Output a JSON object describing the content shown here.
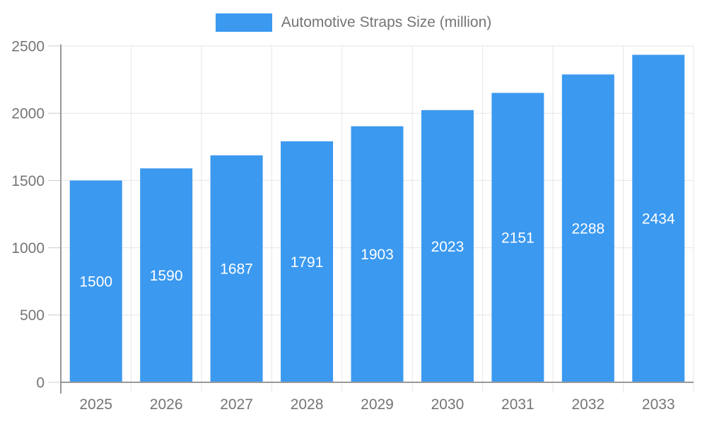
{
  "legend": {
    "label": "Automotive Straps Size (million)"
  },
  "chart_data": {
    "type": "bar",
    "title": "Automotive Straps Size (million)",
    "categories": [
      "2025",
      "2026",
      "2027",
      "2028",
      "2029",
      "2030",
      "2031",
      "2032",
      "2033"
    ],
    "values": [
      1500,
      1590,
      1687,
      1791,
      1903,
      2023,
      2151,
      2288,
      2434
    ],
    "xlabel": "",
    "ylabel": "",
    "ylim": [
      0,
      2500
    ],
    "yticks": [
      0,
      500,
      1000,
      1500,
      2000,
      2500
    ],
    "grid": true,
    "legend_position": "top-center",
    "value_labels_inside_bars": true,
    "colors": {
      "bar": "#3B99F0",
      "bar_label_text": "#FFFFFF",
      "axis_text": "#757575",
      "grid_line": "#E6E6E6",
      "axis_line": "#999999",
      "tick_line": "#CCCCCC",
      "background": "#FFFFFF"
    }
  }
}
